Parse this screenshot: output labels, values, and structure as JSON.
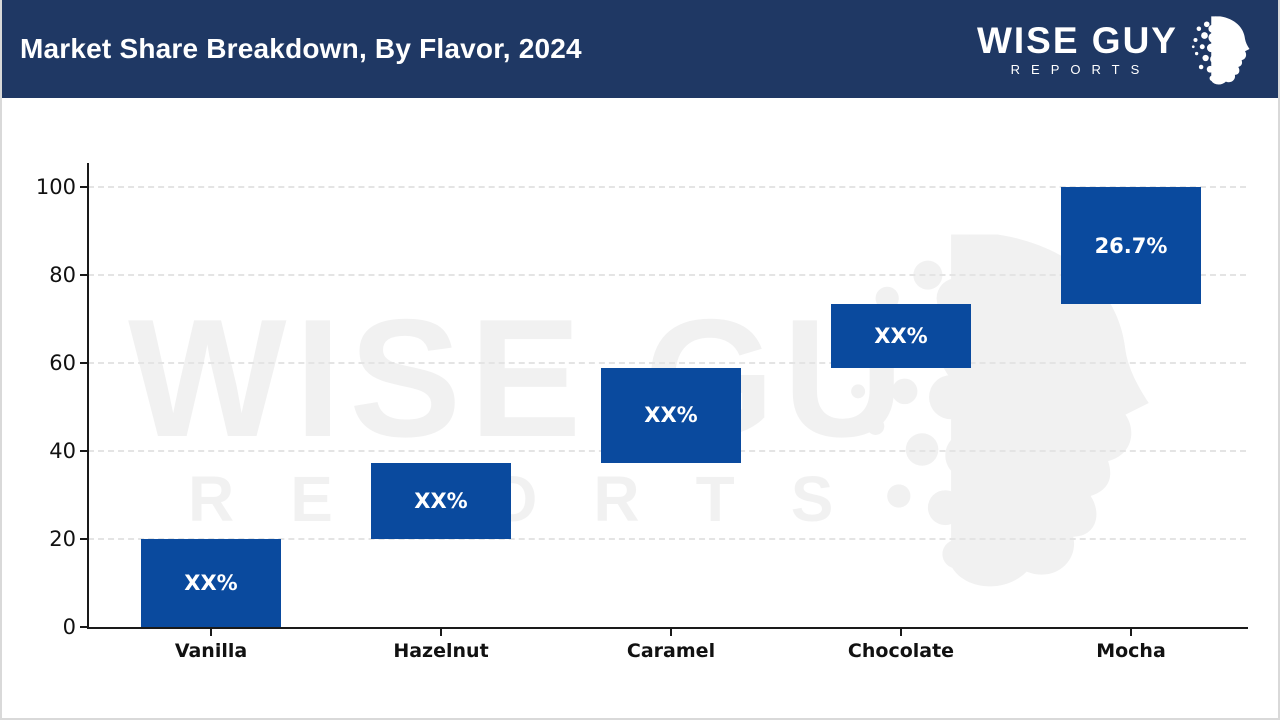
{
  "header": {
    "title": "Market Share Breakdown, By Flavor, 2024",
    "logo": {
      "line1": "WISE GUY",
      "line2": "REPORTS"
    }
  },
  "watermark": {
    "line1": "WISE GUY",
    "line2": "REPORTS"
  },
  "colors": {
    "header_bg": "#1f3864",
    "bar": "#0a4a9e",
    "bar_label": "#ffffff",
    "grid": "#e4e4e4",
    "axis": "#1a1a1a"
  },
  "chart_data": {
    "type": "bar",
    "subtype": "waterfall-floating-bars",
    "title": "Market Share Breakdown, By Flavor, 2024",
    "categories": [
      "Vanilla",
      "Hazelnut",
      "Caramel",
      "Chocolate",
      "Mocha"
    ],
    "segments": [
      {
        "category": "Vanilla",
        "start": 0,
        "end": 20,
        "value": 20.0,
        "label": "XX%"
      },
      {
        "category": "Hazelnut",
        "start": 20,
        "end": 37.3,
        "value": 17.3,
        "label": "XX%"
      },
      {
        "category": "Caramel",
        "start": 37.3,
        "end": 58.9,
        "value": 21.6,
        "label": "XX%"
      },
      {
        "category": "Chocolate",
        "start": 58.9,
        "end": 73.3,
        "value": 14.4,
        "label": "XX%"
      },
      {
        "category": "Mocha",
        "start": 73.3,
        "end": 100,
        "value": 26.7,
        "label": "26.7%"
      }
    ],
    "yticks": [
      0,
      20,
      40,
      60,
      80,
      100
    ],
    "ylim": [
      0,
      105
    ],
    "xlabel": "",
    "ylabel": "",
    "grid": "horizontal-dashed",
    "legend": "none"
  }
}
